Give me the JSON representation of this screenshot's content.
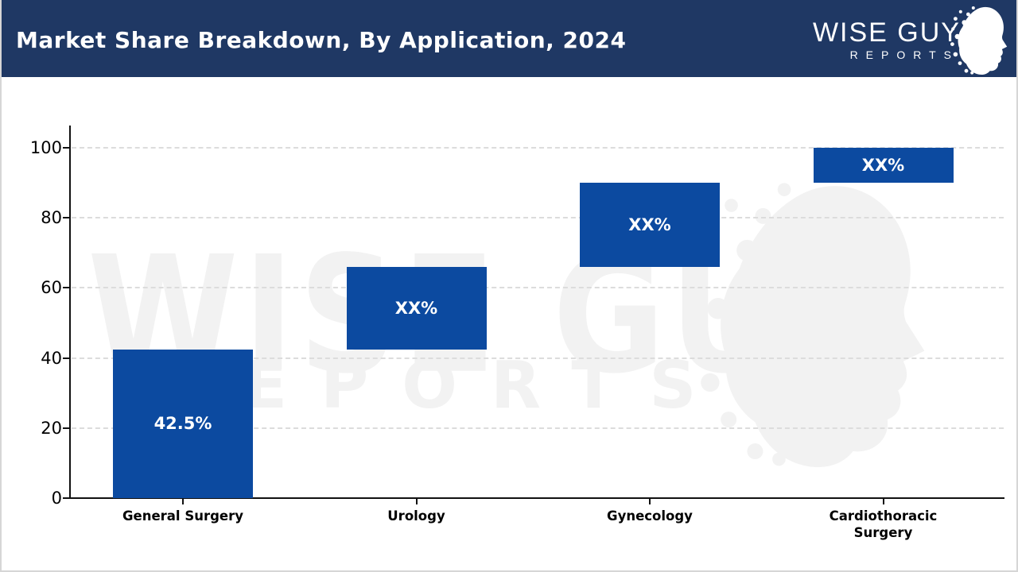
{
  "header": {
    "title": "Market Share Breakdown, By Application, 2024",
    "logo_line1": "WISE GUY",
    "logo_line2": "REPORTS"
  },
  "watermark": {
    "line1": "WISE GUY",
    "line2": "REPORTS"
  },
  "colors": {
    "header_bg": "#1f3864",
    "bar": "#0c4aa0",
    "grid": "#dcdcdc",
    "watermark": "#f2f2f2",
    "axis": "#111111",
    "bar_label": "#ffffff"
  },
  "chart_data": {
    "type": "bar",
    "subtype": "waterfall",
    "title": "Market Share Breakdown, By Application, 2024",
    "categories": [
      "General Surgery",
      "Urology",
      "Gynecology",
      "Cardiothoracic Surgery"
    ],
    "segments": [
      {
        "category": "General Surgery",
        "start": 0,
        "end": 42.5,
        "label": "42.5%"
      },
      {
        "category": "Urology",
        "start": 42.5,
        "end": 66,
        "label": "XX%"
      },
      {
        "category": "Gynecology",
        "start": 66,
        "end": 90,
        "label": "XX%"
      },
      {
        "category": "Cardiothoracic Surgery",
        "start": 90,
        "end": 100,
        "label": "XX%"
      }
    ],
    "ylim": [
      0,
      100
    ],
    "yticks": [
      0,
      20,
      40,
      60,
      80,
      100
    ],
    "xlabel": "",
    "ylabel": "",
    "grid": "horizontal-dashed",
    "legend": "none",
    "bar_color": "#0c4aa0"
  }
}
